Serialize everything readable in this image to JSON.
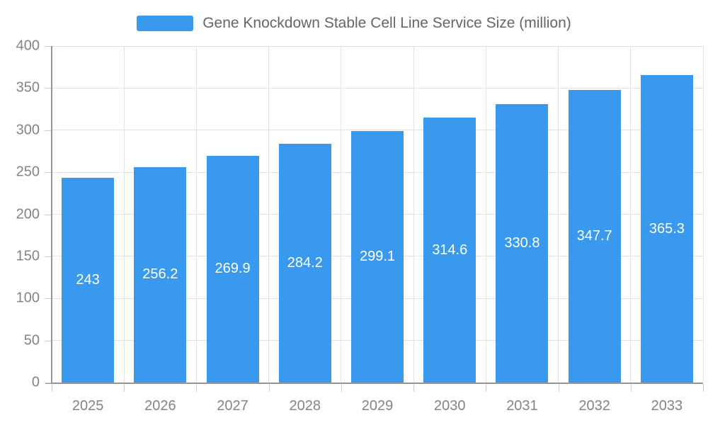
{
  "chart_data": {
    "type": "bar",
    "title": "Gene Knockdown Stable Cell Line Service Size (million)",
    "legend_entries": [
      "Gene Knockdown Stable Cell Line Service Size (million)"
    ],
    "legend_position": "top-center",
    "categories": [
      "2025",
      "2026",
      "2027",
      "2028",
      "2029",
      "2030",
      "2031",
      "2032",
      "2033"
    ],
    "values": [
      243,
      256.2,
      269.9,
      284.2,
      299.1,
      314.6,
      330.8,
      347.7,
      365.3
    ],
    "value_labels": [
      "243",
      "256.2",
      "269.9",
      "284.2",
      "299.1",
      "314.6",
      "330.8",
      "347.7",
      "365.3"
    ],
    "xlabel": "",
    "ylabel": "",
    "ylim": [
      0,
      400
    ],
    "y_ticks": [
      0,
      50,
      100,
      150,
      200,
      250,
      300,
      350,
      400
    ],
    "grid": true,
    "value_label_position": "inside-middle",
    "colors": {
      "bar": "#3899ee",
      "gridline": "#e2e2e2",
      "axis": "#969696",
      "tick_mark": "#cccccc",
      "axis_label": "#848484",
      "title_text": "#666666",
      "value_label": "#ffffff",
      "background": "#ffffff"
    }
  }
}
